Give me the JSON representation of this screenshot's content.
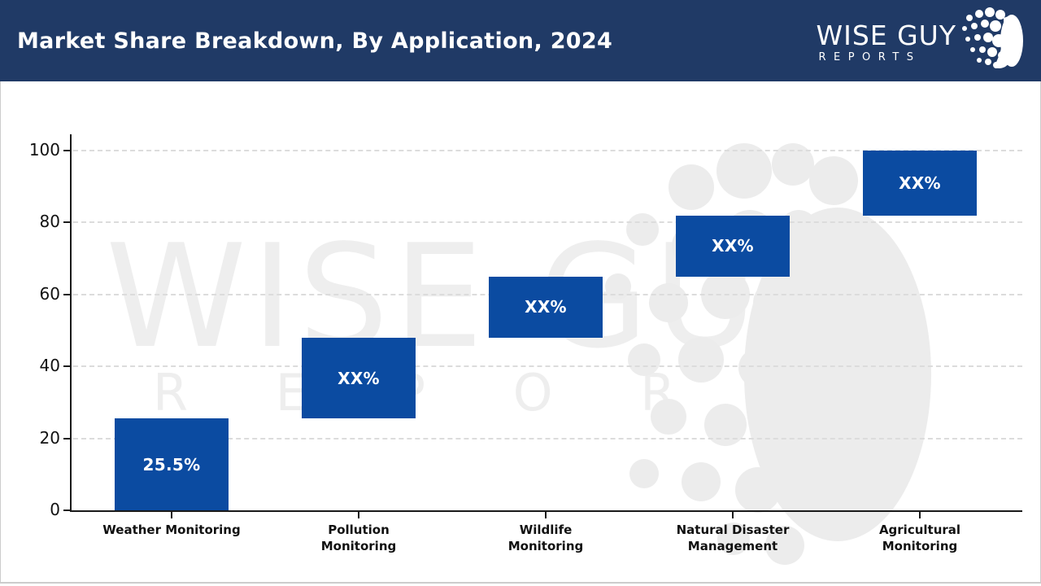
{
  "header": {
    "title": "Market Share Breakdown, By Application, 2024",
    "logo": {
      "line1": "WISE GUY",
      "line2": "REPORTS"
    }
  },
  "watermark": {
    "line1": "WISE GUY",
    "line2": "R E P O R T S"
  },
  "colors": {
    "header_bg": "#203a66",
    "bar": "#0b4ba1",
    "axis": "#1a1a1a",
    "grid": "#dcdcdc",
    "watermark": "#eeeeee",
    "bar_label": "#ffffff"
  },
  "chart_data": {
    "type": "bar",
    "variant": "waterfall",
    "title": "Market Share Breakdown, By Application, 2024",
    "xlabel": "",
    "ylabel": "",
    "categories": [
      "Weather Monitoring",
      "Pollution Monitoring",
      "Wildlife Monitoring",
      "Natural Disaster Management",
      "Agricultural Monitoring"
    ],
    "category_label_lines": [
      [
        "Weather Monitoring"
      ],
      [
        "Pollution",
        "Monitoring"
      ],
      [
        "Wildlife",
        "Monitoring"
      ],
      [
        "Natural Disaster",
        "Management"
      ],
      [
        "Agricultural",
        "Monitoring"
      ]
    ],
    "bars": [
      {
        "start": 0,
        "end": 25.5,
        "label": "25.5%"
      },
      {
        "start": 25.5,
        "end": 48,
        "label": "XX%"
      },
      {
        "start": 48,
        "end": 65,
        "label": "XX%"
      },
      {
        "start": 65,
        "end": 82,
        "label": "XX%"
      },
      {
        "start": 82,
        "end": 100,
        "label": "XX%"
      }
    ],
    "yticks": [
      0,
      20,
      40,
      60,
      80,
      100
    ],
    "ylim": [
      0,
      104.5
    ],
    "grid": "dashed horizontal",
    "legend": "none",
    "bar_color": "#0b4ba1",
    "bar_label_color": "#ffffff"
  }
}
